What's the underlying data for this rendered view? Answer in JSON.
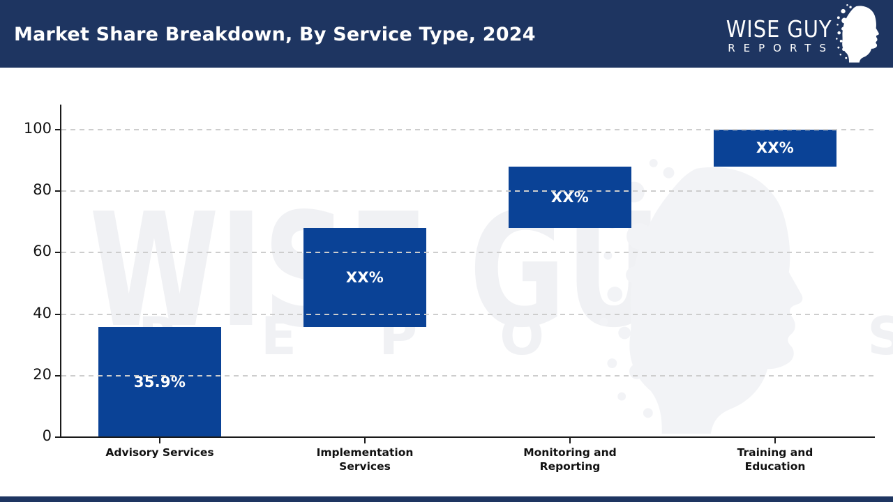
{
  "header": {
    "title": "Market Share Breakdown, By Service Type, 2024",
    "logo": {
      "line1": "WISE GUY",
      "line2": "REPORTS"
    }
  },
  "watermark": {
    "line1": "WISE GUY",
    "line2": "R E P O R T S"
  },
  "colors": {
    "header_bg": "#1e3561",
    "bar": "#0a4296",
    "axis": "#1a1a1a",
    "grid": "#cdcdcd",
    "bar_label": "#ffffff"
  },
  "chart_data": {
    "type": "bar",
    "subtype": "floating-waterfall",
    "title": "Market Share Breakdown, By Service Type, 2024",
    "categories": [
      "Advisory Services",
      "Implementation\nServices",
      "Monitoring and\nReporting",
      "Training and\nEducation"
    ],
    "bars": [
      {
        "category": "Advisory Services",
        "start": 0,
        "end": 35.9,
        "label": "35.9%"
      },
      {
        "category": "Implementation Services",
        "start": 35.9,
        "end": 68,
        "label": "XX%"
      },
      {
        "category": "Monitoring and Reporting",
        "start": 68,
        "end": 88,
        "label": "XX%"
      },
      {
        "category": "Training and Education",
        "start": 88,
        "end": 100,
        "label": "XX%"
      }
    ],
    "xlabel": "",
    "ylabel": "",
    "ylim": [
      0,
      100
    ],
    "yticks": [
      0,
      20,
      40,
      60,
      80,
      100
    ],
    "grid": "horizontal-dashed",
    "legend": "none"
  }
}
